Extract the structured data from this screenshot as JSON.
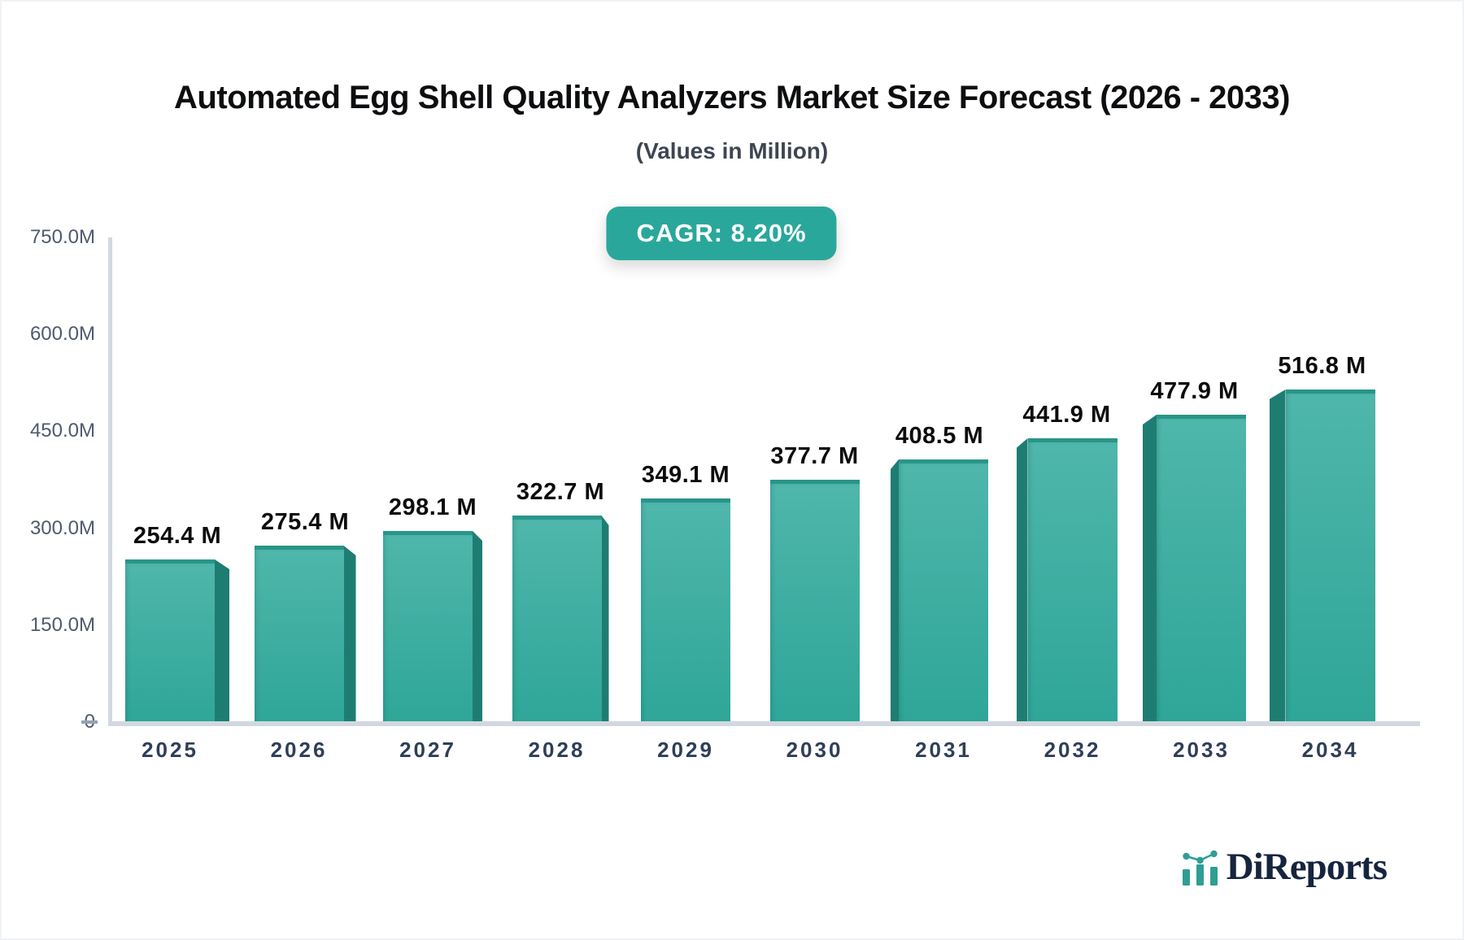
{
  "header": {
    "title": "Automated Egg Shell Quality Analyzers Market Size Forecast (2026 - 2033)",
    "subtitle": "(Values in Million)",
    "cagr_badge": "CAGR: 8.20%",
    "badge_color": "#2aa79b"
  },
  "chart_data": {
    "type": "bar",
    "title": "Automated Egg Shell Quality Analyzers Market Size Forecast (2026 - 2033)",
    "subtitle": "(Values in Million)",
    "unit": "Million",
    "categories": [
      "2025",
      "2026",
      "2027",
      "2028",
      "2029",
      "2030",
      "2031",
      "2032",
      "2033",
      "2034"
    ],
    "values": [
      254.4,
      275.4,
      298.1,
      322.7,
      349.1,
      377.7,
      408.5,
      441.9,
      477.9,
      516.8
    ],
    "value_labels": [
      "254.4 M",
      "275.4 M",
      "298.1 M",
      "322.7 M",
      "349.1 M",
      "377.7 M",
      "408.5 M",
      "441.9 M",
      "477.9 M",
      "516.8 M"
    ],
    "cagr_percent": "8.20%",
    "xlabel": "",
    "ylabel": "",
    "ylim": [
      0,
      750
    ],
    "grid": false,
    "legend": "none",
    "yticks": [
      {
        "label": "750.0M",
        "value": 750
      },
      {
        "label": "600.0M",
        "value": 600
      },
      {
        "label": "450.0M",
        "value": 450
      },
      {
        "label": "300.0M",
        "value": 300
      },
      {
        "label": "150.0M",
        "value": 150
      },
      {
        "label": "0",
        "value": 0
      }
    ],
    "colors": {
      "bar_gradient_top": "#4fb6ab",
      "bar_gradient_bottom": "#2ea698",
      "bar_top_edge": "#299589",
      "bar_side": "#1e7d72",
      "axis_line": "#d3d8e0"
    }
  },
  "branding": {
    "logo_text": "DiReports",
    "logo_icon": "bar-line-chart-icon",
    "logo_text_color": "#16253e",
    "logo_icon_color": "#2f9e94"
  }
}
